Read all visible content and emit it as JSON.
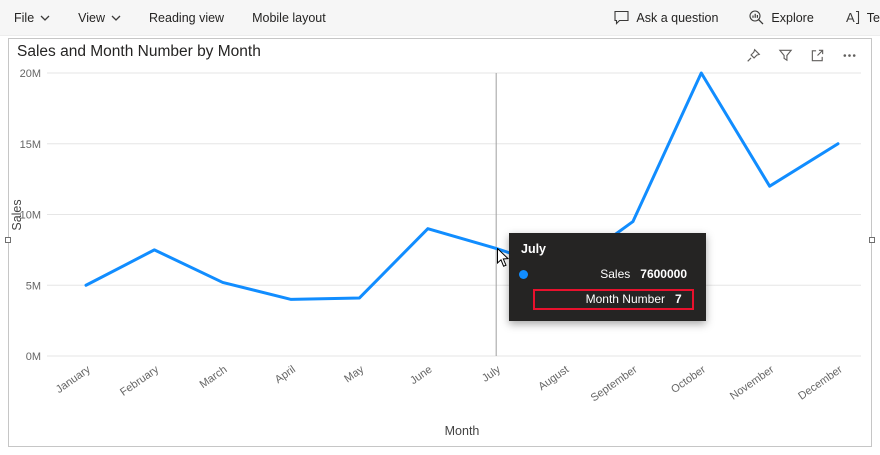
{
  "menubar": {
    "items": [
      {
        "label": "File",
        "has_dropdown": true
      },
      {
        "label": "View",
        "has_dropdown": true
      },
      {
        "label": "Reading view",
        "has_dropdown": false
      },
      {
        "label": "Mobile layout",
        "has_dropdown": false
      }
    ],
    "right_items": [
      {
        "label": "Ask a question",
        "icon": "speech-bubble-icon"
      },
      {
        "label": "Explore",
        "icon": "explore-icon"
      },
      {
        "label": "Te",
        "icon": "text-box-icon"
      }
    ]
  },
  "visual": {
    "title": "Sales and Month Number by Month",
    "header_icons": [
      "pin-icon",
      "filter-icon",
      "focus-mode-icon",
      "more-options-icon"
    ]
  },
  "tooltip": {
    "title": "July",
    "rows": [
      {
        "label": "Sales",
        "value": "7600000",
        "marker_color": "#118DFF",
        "highlighted": false
      },
      {
        "label": "Month Number",
        "value": "7",
        "marker_color": null,
        "highlighted": true
      }
    ],
    "highlight_color": "#E8112D"
  },
  "chart_data": {
    "type": "line",
    "title": "Sales and Month Number by Month",
    "xlabel": "Month",
    "ylabel": "Sales",
    "categories": [
      "January",
      "February",
      "March",
      "April",
      "May",
      "June",
      "July",
      "August",
      "September",
      "October",
      "November",
      "December"
    ],
    "series": [
      {
        "name": "Sales",
        "values": [
          5000000,
          7500000,
          5200000,
          4000000,
          4100000,
          9000000,
          7600000,
          6000000,
          9500000,
          20000000,
          12000000,
          15000000
        ]
      }
    ],
    "ylim": [
      0,
      20000000
    ],
    "yticks": [
      "0M",
      "5M",
      "10M",
      "15M",
      "20M"
    ],
    "grid": "horizontal",
    "legend": "none",
    "line_color": "#118DFF",
    "selected_point": {
      "category": "July",
      "value": 7600000,
      "month_number": 7
    }
  }
}
